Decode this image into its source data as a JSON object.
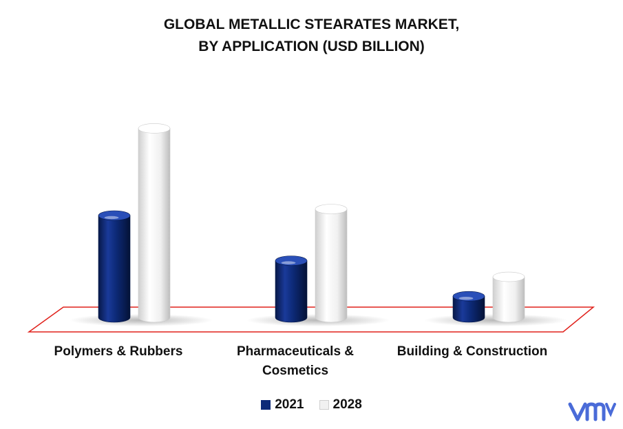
{
  "title_lines": [
    "GLOBAL METALLIC STEARATES MARKET,",
    "BY APPLICATION (USD BILLION)"
  ],
  "category_label_lines": [
    [
      "Polymers & Rubbers"
    ],
    [
      "Pharmaceuticals &",
      "Cosmetics"
    ],
    [
      "Building & Construction"
    ]
  ],
  "legend": [
    "2021",
    "2028"
  ],
  "colors": {
    "s2021": "#0d2a78",
    "s2028": "#f1f1f1",
    "floor": "#e0201a",
    "logo": "#4a6bd8"
  },
  "chart_data": {
    "type": "bar",
    "title": "GLOBAL METALLIC STEARATES MARKET, BY APPLICATION (USD BILLION)",
    "categories": [
      "Polymers & Rubbers",
      "Pharmaceuticals & Cosmetics",
      "Building & Construction"
    ],
    "series": [
      {
        "name": "2021",
        "values": [
          1.6,
          0.9,
          0.35
        ]
      },
      {
        "name": "2028",
        "values": [
          2.95,
          1.7,
          0.65
        ]
      }
    ],
    "ylim": [
      0,
      3.2
    ],
    "grid": false,
    "legend_position": "bottom"
  }
}
